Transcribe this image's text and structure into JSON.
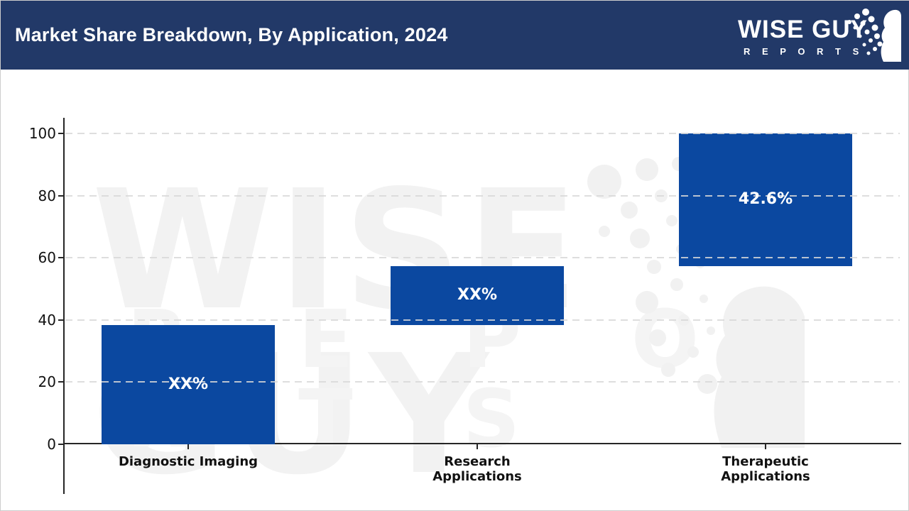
{
  "header": {
    "title": "Market Share Breakdown, By Application, 2024",
    "logo_line1": "WISE GUY",
    "logo_line2": "R E P O R T S",
    "bg_color": "#223968"
  },
  "watermark": {
    "line1": "WISE GUY",
    "line2": "R E P O R T S"
  },
  "chart_data": {
    "type": "bar",
    "subtype": "waterfall",
    "title": "Market Share Breakdown, By Application, 2024",
    "categories": [
      "Diagnostic Imaging",
      "Research Applications",
      "Therapeutic Applications"
    ],
    "tick_labels": [
      "Diagnostic Imaging",
      "Research\nApplications",
      "Therapeutic\nApplications"
    ],
    "series": [
      {
        "name": "Market Share",
        "segments": [
          {
            "category": "Diagnostic Imaging",
            "start": 0,
            "end": 38.4,
            "label": "XX%"
          },
          {
            "category": "Research Applications",
            "start": 38.4,
            "end": 57.4,
            "label": "XX%"
          },
          {
            "category": "Therapeutic Applications",
            "start": 57.4,
            "end": 100,
            "label": "42.6%",
            "value": 42.6
          }
        ]
      }
    ],
    "ylim": [
      0,
      100
    ],
    "yticks": [
      0,
      20,
      40,
      60,
      80,
      100
    ],
    "xlabel": "",
    "ylabel": "",
    "grid": "horizontal-dashed",
    "legend": "none",
    "bar_color": "#0b48a0",
    "bar_label_color": "#ffffff",
    "grid_color": "#d8d8d8",
    "axis_color": "#262626"
  }
}
